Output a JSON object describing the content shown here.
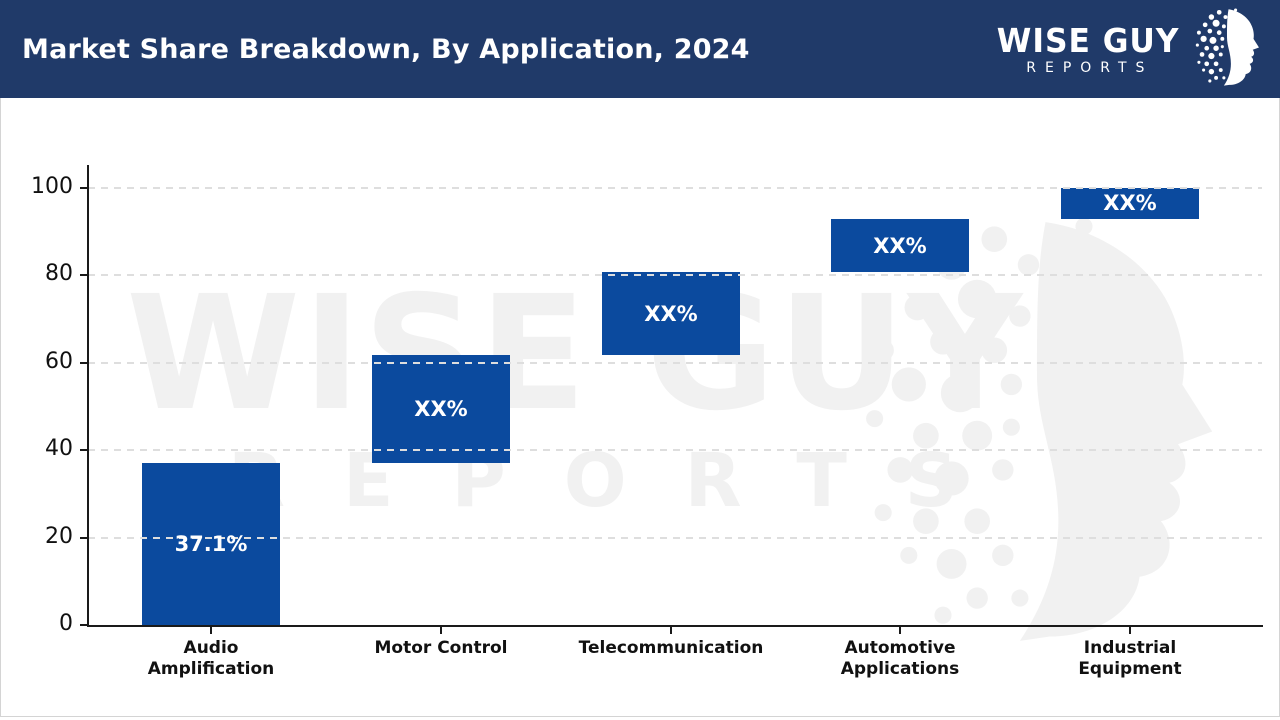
{
  "header": {
    "title": "Market Share Breakdown, By Application, 2024",
    "logo": {
      "brand_line1": "WISE GUY",
      "brand_line2": "REPORTS"
    }
  },
  "watermark": {
    "line1": "WISE GUY",
    "line2": "REPORTS"
  },
  "chart_data": {
    "type": "bar",
    "subtype": "floating-waterfall",
    "title": "Market Share Breakdown, By Application, 2024",
    "categories": [
      "Audio Amplification",
      "Motor Control",
      "Telecommunication",
      "Automotive Applications",
      "Industrial Equipment"
    ],
    "category_lines": [
      [
        "Audio",
        "Amplification"
      ],
      [
        "Motor Control"
      ],
      [
        "Telecommunication"
      ],
      [
        "Automotive",
        "Applications"
      ],
      [
        "Industrial",
        "Equipment"
      ]
    ],
    "segments": [
      {
        "category": "Audio Amplification",
        "start": 0,
        "end": 37.1,
        "label": "37.1%"
      },
      {
        "category": "Motor Control",
        "start": 37.1,
        "end": 61.7,
        "label": "XX%"
      },
      {
        "category": "Telecommunication",
        "start": 61.7,
        "end": 80.6,
        "label": "XX%"
      },
      {
        "category": "Automotive Applications",
        "start": 80.6,
        "end": 92.8,
        "label": "XX%"
      },
      {
        "category": "Industrial Equipment",
        "start": 92.8,
        "end": 100,
        "label": "XX%"
      }
    ],
    "xlabel": "",
    "ylabel": "",
    "ylim": [
      0,
      100
    ],
    "yticks": [
      0,
      20,
      40,
      60,
      80,
      100
    ],
    "grid": "horizontal-dashed",
    "legend": "none"
  },
  "colors": {
    "header_bg": "#203a69",
    "bar": "#0b4a9e",
    "bar_label": "#ffffff",
    "grid": "#dedede",
    "axis": "#1a1a1a",
    "watermark": "#f1f1f1",
    "frame_border": "#d4d4d4"
  }
}
